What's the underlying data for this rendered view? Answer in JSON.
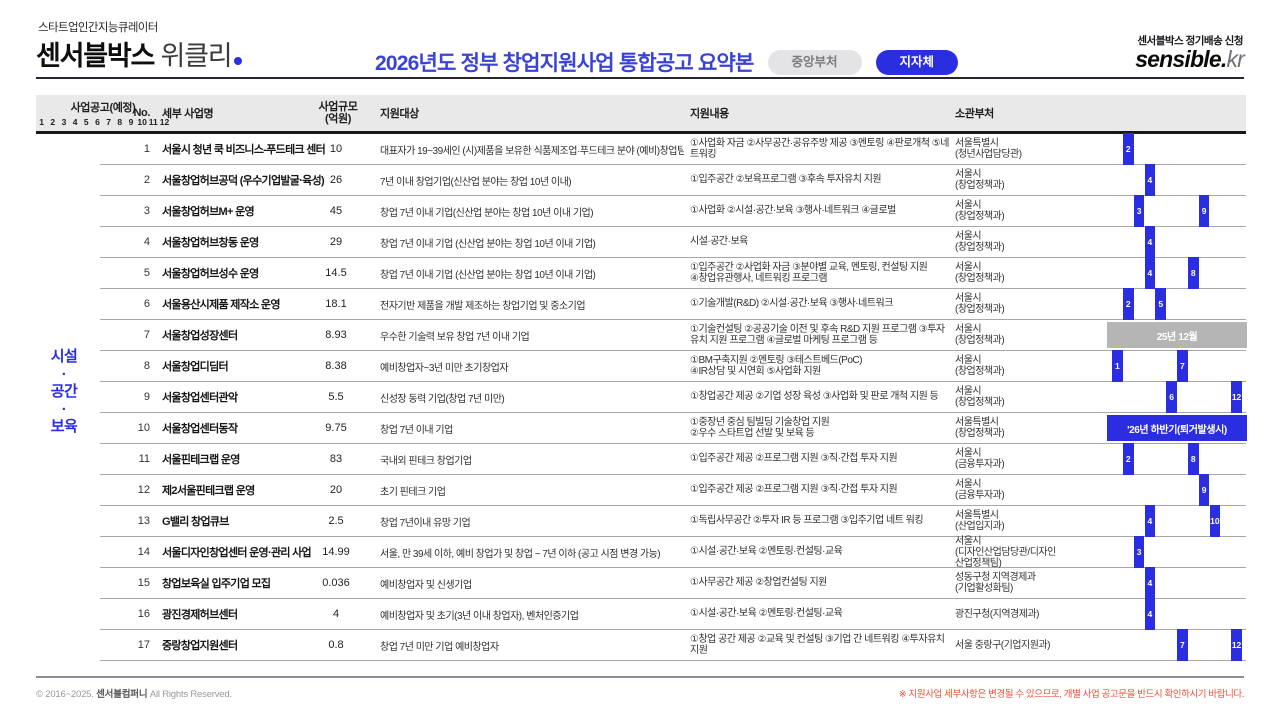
{
  "colors": {
    "accent": "#2b2ee0",
    "title_blue": "#3a43d4",
    "banner_gray": "#b5b5b5",
    "notice_red": "#f04f3a"
  },
  "header": {
    "tagline": "스타트업인간지능큐레이터",
    "brand_strong": "센서블박스",
    "brand_light": " 위클리",
    "title": "2026년도 정부 창업지원사업 통합공고 ",
    "title_emphasis": "요약본",
    "filter_central": "중앙부처",
    "filter_local": "지자체",
    "subscribe": "센서블박스 정기배송 신청",
    "logo_strong": "sensible.",
    "logo_light": "kr"
  },
  "table": {
    "group_label": "시설\n·\n공간\n·\n보육",
    "headers": {
      "no": "No.",
      "name": "세부 사업명",
      "scale": "사업규모\n(억원)",
      "target": "지원대상",
      "content": "지원내용",
      "agency": "소관부처",
      "schedule": "사업공고(예정)"
    },
    "months": [
      "1",
      "2",
      "3",
      "4",
      "5",
      "6",
      "7",
      "8",
      "9",
      "10",
      "11",
      "12"
    ],
    "rows": [
      {
        "no": "1",
        "name": "서울시 청년 쿡 비즈니스-푸드테크 센터",
        "scale": "10",
        "target": "대표자가 19~39세인 (시)제품을 보유한 식품제조업·푸드테크 분야 (예비)창업팀",
        "content": "①사업화 자금 ②사무공간·공유주방 제공 ③멘토링 ④판로개척 ⑤네트워킹",
        "agency": "서울특별시\n(청년사업담당관)",
        "months": [
          2
        ]
      },
      {
        "no": "2",
        "name": "서울창업허브공덕 (우수기업발굴·육성)",
        "scale": "26",
        "target": "7년 이내 창업기업(신산업 분야는 창업 10년 이내)",
        "content": "①입주공간 ②보육프로그램 ③후속 투자유치 지원",
        "agency": "서울시\n(창업정책과)",
        "months": [
          4
        ]
      },
      {
        "no": "3",
        "name": "서울창업허브M+ 운영",
        "scale": "45",
        "target": "창업 7년 이내 기업(신산업 분야는 창업 10년 이내 기업)",
        "content": "①사업화 ②시설·공간·보육 ③행사·네트워크 ④글로벌",
        "agency": "서울시\n(창업정책과)",
        "months": [
          3,
          9
        ]
      },
      {
        "no": "4",
        "name": "서울창업허브창동 운영",
        "scale": "29",
        "target": "창업 7년 이내 기업 (신산업 분야는 창업 10년 이내 기업)",
        "content": "시설·공간·보육",
        "agency": "서울시\n(창업정책과)",
        "months": [
          4
        ]
      },
      {
        "no": "5",
        "name": "서울창업허브성수 운영",
        "scale": "14.5",
        "target": "창업 7년 이내 기업 (신산업 분야는 창업 10년 이내 기업)",
        "content": "①입주공간 ②사업화 자금 ③분야별 교육, 멘토링, 컨설팅 지원\n④창업유관행사, 네트워킹 프로그램",
        "agency": "서울시\n(창업정책과)",
        "months": [
          4,
          8
        ]
      },
      {
        "no": "6",
        "name": "서울용산시제품 제작소 운영",
        "scale": "18.1",
        "target": "전자기반 제품을 개발 제조하는 창업기업 및 중소기업",
        "content": "①기술개발(R&D) ②시설·공간·보육 ③행사·네트워크",
        "agency": "서울시\n(창업정책과)",
        "months": [
          2,
          5
        ]
      },
      {
        "no": "7",
        "name": "서울창업성장센터",
        "scale": "8.93",
        "target": "우수한 기술력 보유 창업 7년 이내 기업",
        "content": "①기술컨설팅 ②공공기술 이전 및 후속 R&D 지원 프로그램 ③투자유치 지원 프로그램 ④글로벌 마케팅 프로그램 등",
        "agency": "서울시\n(창업정책과)",
        "months": [],
        "banner": {
          "style": "gray",
          "text": "25년 12월"
        }
      },
      {
        "no": "8",
        "name": "서울창업디딤터",
        "scale": "8.38",
        "target": "예비창업자~3년 미만 초기창업자",
        "content": "①BM구축지원 ②멘토링 ③테스트베드(PoC)\n④IR상담 및 시연회 ⑤사업화 지원",
        "agency": "서울시\n(창업정책과)",
        "months": [
          1,
          7
        ]
      },
      {
        "no": "9",
        "name": "서울창업센터관악",
        "scale": "5.5",
        "target": "신성장 동력 기업(창업 7년 미만)",
        "content": "①창업공간 제공 ②기업 성장 육성 ③사업화 및 판로 개척 지원 등",
        "agency": "서울시\n(창업정책과)",
        "months": [
          6,
          12
        ]
      },
      {
        "no": "10",
        "name": "서울창업센터동작",
        "scale": "9.75",
        "target": "창업 7년 이내 기업",
        "content": "①중장년 중심 팀빌딩 기술창업 지원\n②우수 스타트업 선발 및 보육 등",
        "agency": "서울특별시\n(창업정책과)",
        "months": [],
        "banner": {
          "style": "blue",
          "text": "'26년 하반기(퇴거발생시)"
        }
      },
      {
        "no": "11",
        "name": "서울핀테크랩 운영",
        "scale": "83",
        "target": "국내외 핀테크 창업기업",
        "content": "①입주공간 제공 ②프로그램 지원 ③직·간접 투자 지원",
        "agency": "서울시\n(금융투자과)",
        "months": [
          2,
          8
        ]
      },
      {
        "no": "12",
        "name": "제2서울핀테크랩 운영",
        "scale": "20",
        "target": "초기 핀테크 기업",
        "content": "①입주공간 제공 ②프로그램 지원 ③직·간접 투자 지원",
        "agency": "서울시\n(금융투자과)",
        "months": [
          9
        ]
      },
      {
        "no": "13",
        "name": "G밸리 창업큐브",
        "scale": "2.5",
        "target": "창업 7년이내 유망 기업",
        "content": "①독립사무공간 ②투자 IR 등 프로그램 ③입주기업 네트 워킹",
        "agency": "서울특별시\n(산업입지과)",
        "months": [
          4,
          10
        ]
      },
      {
        "no": "14",
        "name": "서울디자인창업센터 운영·관리 사업",
        "scale": "14.99",
        "target": "서울, 만 39세 이하, 예비 창업가 및 창업 ~ 7년 이하 (공고 시점 변경 가능)",
        "content": "①시설·공간·보육 ②멘토링·컨설팅·교육",
        "agency": "서울시\n(디자인산업담당관/디자인\n산업정책팀)",
        "months": [
          3
        ]
      },
      {
        "no": "15",
        "name": "창업보육실 입주기업 모집",
        "scale": "0.036",
        "target": "예비창업자 및 신생기업",
        "content": "①사무공간 제공 ②창업컨설팅 지원",
        "agency": "성동구청 지역경제과\n(기업활성화팀)",
        "months": [
          4
        ]
      },
      {
        "no": "16",
        "name": "광진경제허브센터",
        "scale": "4",
        "target": "예비창업자 및 초기(3년 이내 창업자), 벤처인증기업",
        "content": "①시설·공간·보육 ②멘토링·컨설팅·교육",
        "agency": "광진구청(지역경제과)",
        "months": [
          4
        ]
      },
      {
        "no": "17",
        "name": "중랑창업지원센터",
        "scale": "0.8",
        "target": "창업 7년 미만 기업 예비창업자",
        "content": "①창업 공간 제공 ②교육 및 컨설팅 ③기업 간 네트워킹 ④투자유치 지원",
        "agency": "서울 중랑구(기업지원과)",
        "months": [
          7,
          12
        ]
      }
    ]
  },
  "footer": {
    "copyright_prefix": "© 2016~2025. ",
    "company": "센서블컴퍼니",
    "copyright_suffix": " All  Rights  Reserved.",
    "notice": "※ 지원사업 세부사항은 변경될 수 있으므로, 개별 사업 공고문을 반드시 확인하시기 바랍니다."
  }
}
